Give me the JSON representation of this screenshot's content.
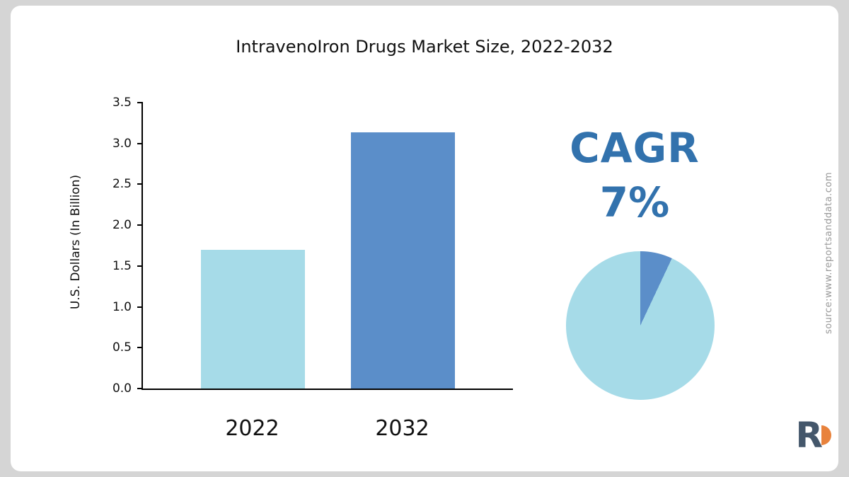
{
  "title": "IntravenoIron Drugs Market Size, 2022-2032",
  "source": "source:www.reportsanddata.com",
  "cagr": {
    "label": "CAGR",
    "value": "7%",
    "color": "#3272ad"
  },
  "chart_data": [
    {
      "type": "bar",
      "title": "IntravenoIron Drugs Market Size, 2022-2032",
      "categories": [
        "2022",
        "2032"
      ],
      "values": [
        1.7,
        3.14
      ],
      "bar_colors": [
        "#a6dbe8",
        "#5b8ec9"
      ],
      "xlabel": "",
      "ylabel": "U.S. Dollars (In Billion)",
      "ylim": [
        0,
        3.5
      ],
      "ytick_step": 0.5,
      "grid": false,
      "legend_position": "none"
    },
    {
      "type": "pie",
      "values": [
        7,
        93
      ],
      "colors": [
        "#5b8ec9",
        "#a6dbe8"
      ],
      "start_angle_deg": 0,
      "direction": "clockwise"
    }
  ],
  "logo": {
    "letter": "R",
    "letter_color": "#44576b",
    "dot_color": "#e8823c"
  },
  "colors": {
    "page_background": "#d5d5d5",
    "card_background": "#ffffff",
    "axis": "#000000",
    "accent_blue": "#3272ad"
  }
}
